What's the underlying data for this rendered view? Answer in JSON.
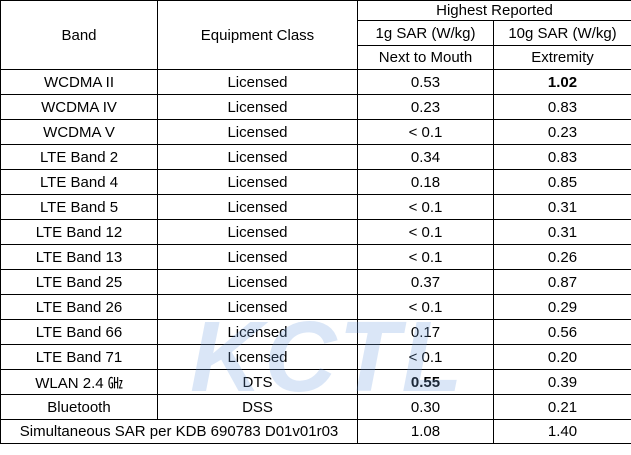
{
  "header": {
    "band": "Band",
    "equipment_class": "Equipment Class",
    "highest_reported": "Highest Reported",
    "sar_1g": "1g SAR (W/kg)",
    "sar_10g": "10g SAR (W/kg)",
    "position_1g": "Next to Mouth",
    "position_10g": "Extremity"
  },
  "rows": [
    [
      "WCDMA II",
      "Licensed",
      "0.53",
      "1.02"
    ],
    [
      "WCDMA IV",
      "Licensed",
      "0.23",
      "0.83"
    ],
    [
      "WCDMA V",
      "Licensed",
      "< 0.1",
      "0.23"
    ],
    [
      "LTE Band 2",
      "Licensed",
      "0.34",
      "0.83"
    ],
    [
      "LTE Band 4",
      "Licensed",
      "0.18",
      "0.85"
    ],
    [
      "LTE Band 5",
      "Licensed",
      "< 0.1",
      "0.31"
    ],
    [
      "LTE Band 12",
      "Licensed",
      "< 0.1",
      "0.31"
    ],
    [
      "LTE Band 13",
      "Licensed",
      "< 0.1",
      "0.26"
    ],
    [
      "LTE Band 25",
      "Licensed",
      "0.37",
      "0.87"
    ],
    [
      "LTE Band 26",
      "Licensed",
      "< 0.1",
      "0.29"
    ],
    [
      "LTE Band 66",
      "Licensed",
      "0.17",
      "0.56"
    ],
    [
      "LTE Band 71",
      "Licensed",
      "< 0.1",
      "0.20"
    ],
    [
      "WLAN 2.4 ㎓",
      "DTS",
      "0.55",
      "0.39"
    ],
    [
      "Bluetooth",
      "DSS",
      "0.30",
      "0.21"
    ]
  ],
  "summary": {
    "label": "Simultaneous SAR per KDB 690783 D01v01r03",
    "sar_1g": "1.08",
    "sar_10g": "1.40"
  },
  "watermark": "KCTL"
}
